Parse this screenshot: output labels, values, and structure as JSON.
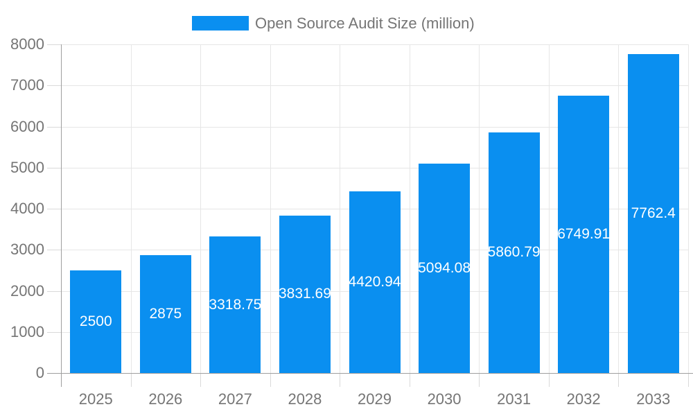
{
  "legend": {
    "swatch_icon": "series-color-swatch"
  },
  "chart_data": {
    "type": "bar",
    "title": "Open Source Audit Size (million)",
    "categories": [
      "2025",
      "2026",
      "2027",
      "2028",
      "2029",
      "2030",
      "2031",
      "2032",
      "2033"
    ],
    "values": [
      2500,
      2875,
      3318.75,
      3831.69,
      4420.94,
      5094.08,
      5860.79,
      6749.91,
      7762.4
    ],
    "value_labels": [
      "2500",
      "2875",
      "3318.75",
      "3831.69",
      "4420.94",
      "5094.08",
      "5860.79",
      "6749.91",
      "7762.4"
    ],
    "series": [
      {
        "name": "Open Source Audit Size (million)",
        "values": [
          2500,
          2875,
          3318.75,
          3831.69,
          4420.94,
          5094.08,
          5860.79,
          6749.91,
          7762.4
        ]
      }
    ],
    "xlabel": "",
    "ylabel": "",
    "ylim": [
      0,
      8000
    ],
    "yticks": [
      0,
      1000,
      2000,
      3000,
      4000,
      5000,
      6000,
      7000,
      8000
    ],
    "grid": true,
    "legend_position": "top-center",
    "colors": {
      "bar": "#0a8ff0",
      "bar_value_label": "#ffffff",
      "axis_text": "#757575",
      "legend_text": "#757575",
      "gridline": "#e6e6e6",
      "boundary_tick": "#d9d9d9",
      "axis_line": "#9e9e9e"
    }
  }
}
